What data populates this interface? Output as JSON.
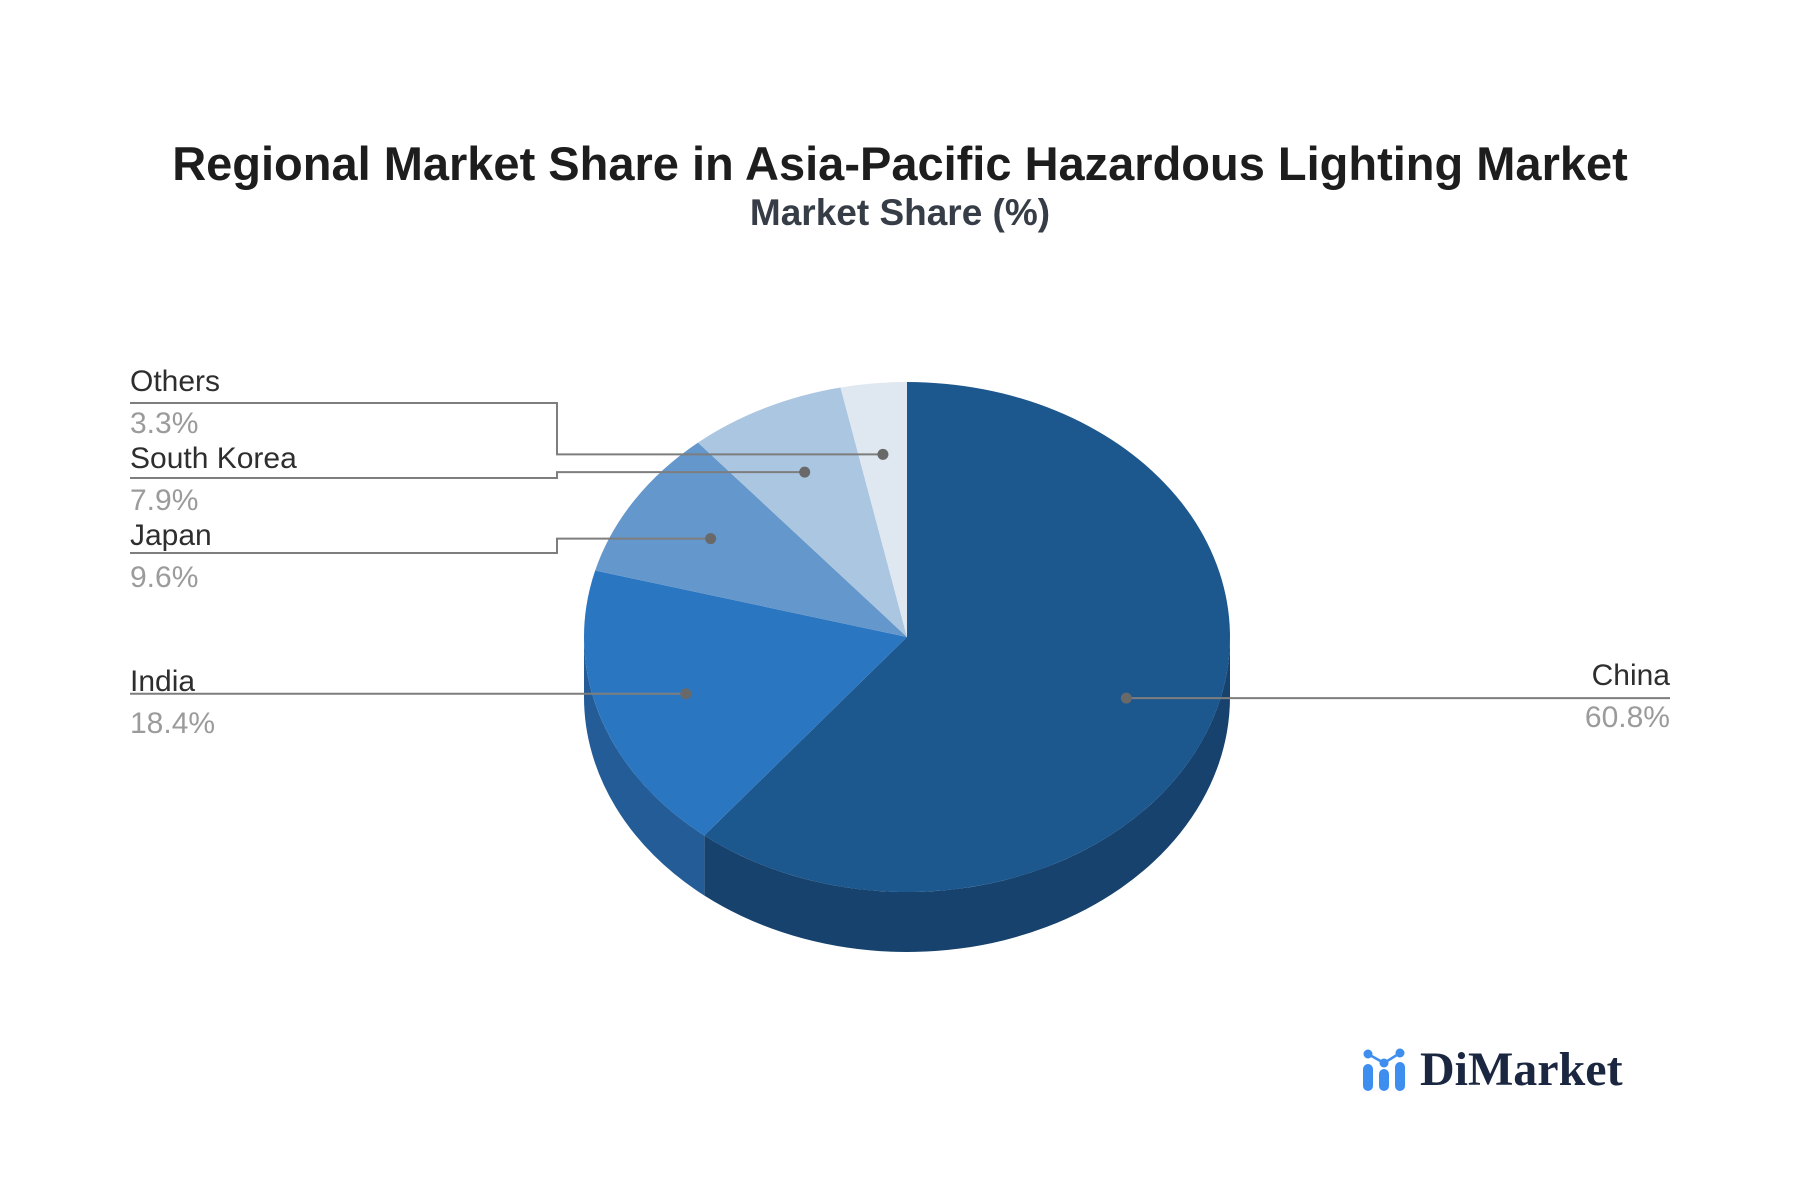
{
  "header": {
    "title": "Regional Market Share in Asia-Pacific Hazardous Lighting Market",
    "subtitle": "Market Share (%)"
  },
  "chart_data": {
    "type": "pie",
    "style": "3d",
    "title": "Regional Market Share in Asia-Pacific Hazardous Lighting Market",
    "subtitle": "Market Share (%)",
    "unit": "%",
    "start_angle_deg": 0,
    "direction": "clockwise",
    "legend": "none",
    "slices": [
      {
        "label": "China",
        "value": 60.8,
        "display": "60.8%",
        "color": "#1C578E",
        "side_color": "#16426D"
      },
      {
        "label": "India",
        "value": 18.4,
        "display": "18.4%",
        "color": "#2B76C1",
        "side_color": "#235C96"
      },
      {
        "label": "Japan",
        "value": 9.6,
        "display": "9.6%",
        "color": "#6497CB"
      },
      {
        "label": "South Korea",
        "value": 7.9,
        "display": "7.9%",
        "color": "#ABC6E0"
      },
      {
        "label": "Others",
        "value": 3.3,
        "display": "3.3%",
        "color": "#DFE7F0"
      }
    ]
  },
  "branding": {
    "logo_text": "DiMarket",
    "logo_icon": "bar-line-chart-icon"
  }
}
